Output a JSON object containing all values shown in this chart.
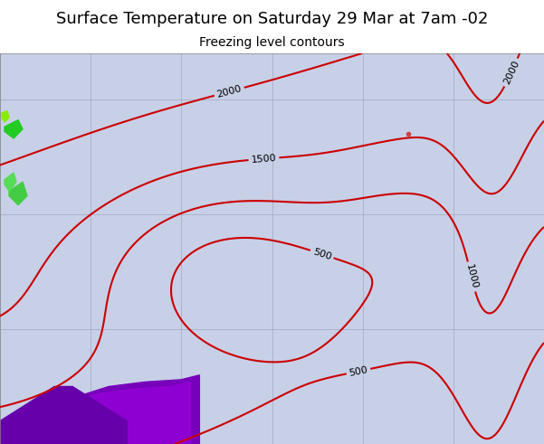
{
  "title": "Surface Temperature on Saturday 29 Mar at 7am -02",
  "subtitle": "Freezing level contours",
  "title_fontsize": 13,
  "subtitle_fontsize": 10,
  "background_color": "#c8d0e8",
  "map_bg_color": "#b8c4dc",
  "header_bg": "#ffffff",
  "contour_color": "#cc0000",
  "contour_linewidth": 1.5,
  "contour_label_fontsize": 8,
  "grid_color": "#a0a8c0",
  "grid_linewidth": 0.5,
  "xlim": [
    -60,
    0
  ],
  "ylim": [
    -65,
    -50
  ],
  "figsize": [
    6.01,
    4.91
  ],
  "dpi": 100
}
